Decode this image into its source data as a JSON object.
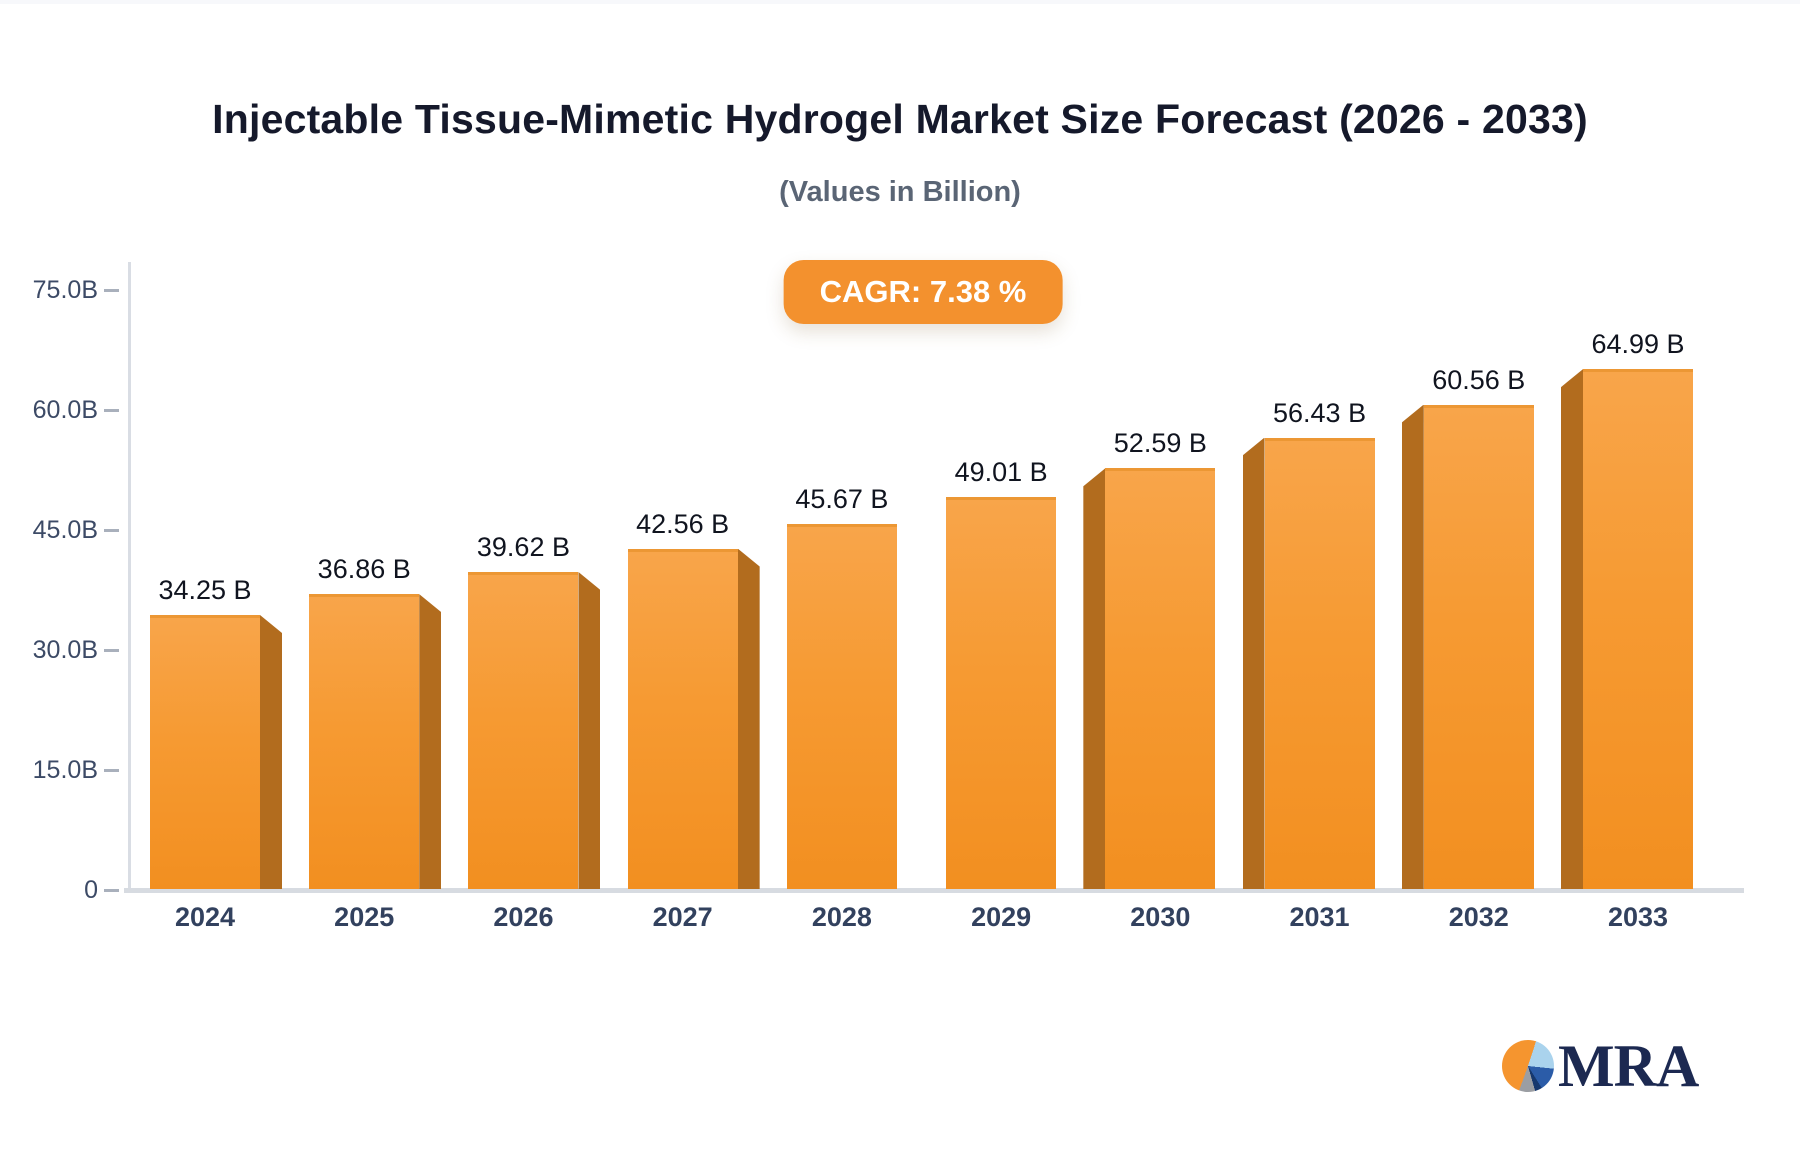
{
  "header": {
    "title": "Injectable Tissue-Mimetic Hydrogel Market Size Forecast (2026 - 2033)",
    "subtitle": "(Values in Billion)"
  },
  "badge": {
    "label": "CAGR: 7.38 %",
    "background": "#f3912e",
    "text_color": "#ffffff"
  },
  "chart_data": {
    "type": "bar",
    "title": "Injectable Tissue-Mimetic Hydrogel Market Size Forecast (2026 - 2033)",
    "subtitle": "(Values in Billion)",
    "annotation": "CAGR: 7.38 %",
    "categories": [
      "2024",
      "2025",
      "2026",
      "2027",
      "2028",
      "2029",
      "2030",
      "2031",
      "2032",
      "2033"
    ],
    "values": [
      34.25,
      36.86,
      39.62,
      42.56,
      45.67,
      49.01,
      52.59,
      56.43,
      60.56,
      64.99
    ],
    "value_labels": [
      "34.25 B",
      "36.86 B",
      "39.62 B",
      "42.56 B",
      "45.67 B",
      "49.01 B",
      "52.59 B",
      "56.43 B",
      "60.56 B",
      "64.99 B"
    ],
    "ytick_labels": [
      "75.0B",
      "60.0B",
      "45.0B",
      "30.0B",
      "15.0B",
      "0"
    ],
    "ytick_values": [
      75,
      60,
      45,
      30,
      15,
      0
    ],
    "ylim": [
      0,
      75
    ],
    "xlabel": "",
    "ylabel": "",
    "grid": "off",
    "legend": "none",
    "colors": {
      "bar_top": "#f8a54a",
      "bar_bottom": "#f28f20",
      "bar_side": "#b26c1e",
      "axis": "#d7dbe1",
      "tick_text": "#3c4a66",
      "value_text": "#10141f",
      "category_text": "#32415e"
    }
  },
  "logo": {
    "text": "MRA",
    "pie_colors": [
      "#f5952f",
      "#aad3ed",
      "#2b5ca8",
      "#16386e",
      "#9b9ea3"
    ]
  }
}
